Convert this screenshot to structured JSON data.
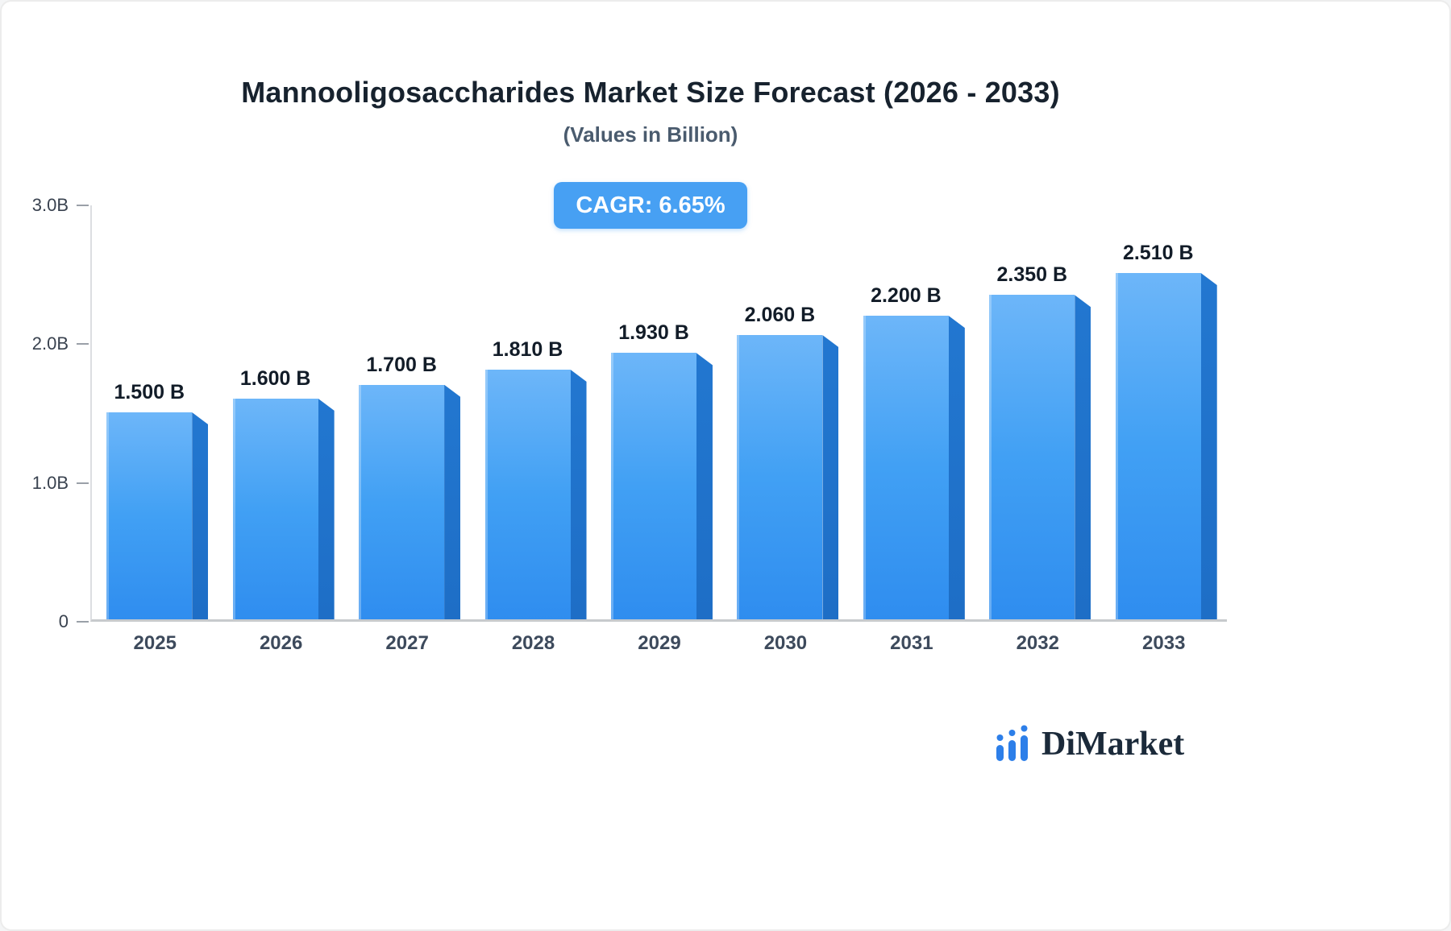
{
  "header": {
    "title": "Mannooligosaccharides Market Size Forecast (2026 - 2033)",
    "subtitle": "(Values in Billion)"
  },
  "badge": {
    "label": "CAGR: 6.65%"
  },
  "logo": {
    "text": "DiMarket",
    "icon": "bar-chart-logo-icon",
    "color": "#2d7fe9"
  },
  "colors": {
    "bar_front_top": "#6db6f9",
    "bar_front_bottom": "#2f8def",
    "bar_side": "#1e6ec6",
    "badge_bg": "#47a0f3"
  },
  "chart_data": {
    "type": "bar",
    "title": "Mannooligosaccharides Market Size Forecast (2026 - 2033)",
    "subtitle": "(Values in Billion)",
    "xlabel": "",
    "ylabel": "",
    "ylim": [
      0,
      3
    ],
    "grid": false,
    "legend": false,
    "categories": [
      "2025",
      "2026",
      "2027",
      "2028",
      "2029",
      "2030",
      "2031",
      "2032",
      "2033"
    ],
    "values": [
      1.5,
      1.6,
      1.7,
      1.81,
      1.93,
      2.06,
      2.2,
      2.35,
      2.51
    ],
    "value_labels": [
      "1.500 B",
      "1.600 B",
      "1.700 B",
      "1.810 B",
      "1.930 B",
      "2.060 B",
      "2.200 B",
      "2.350 B",
      "2.510 B"
    ],
    "yticks": [
      {
        "value": 0,
        "label": "0"
      },
      {
        "value": 1,
        "label": "1.0B"
      },
      {
        "value": 2,
        "label": "2.0B"
      },
      {
        "value": 3,
        "label": "3.0B"
      }
    ]
  }
}
